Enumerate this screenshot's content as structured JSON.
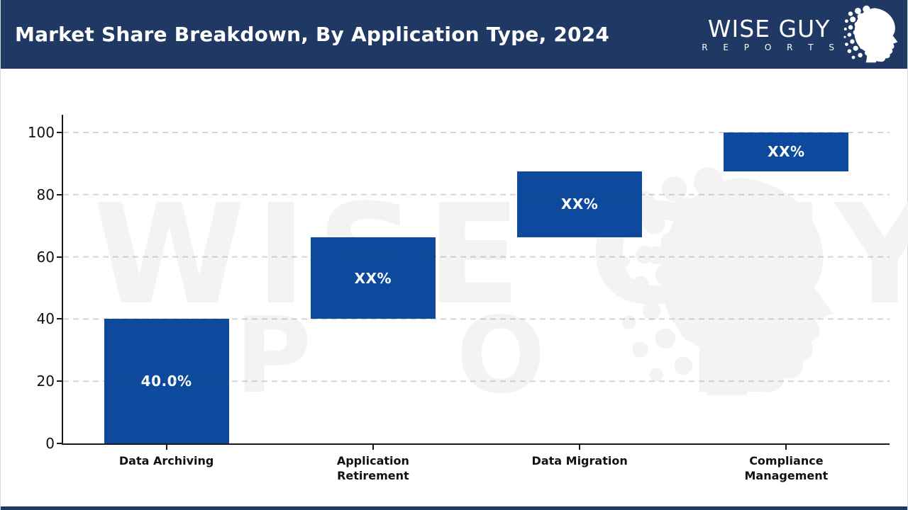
{
  "header": {
    "title": "Market Share Breakdown, By Application Type, 2024",
    "logo": {
      "wordmark": "WISE GUY",
      "subtext": "R E P O R T S"
    }
  },
  "watermark": {
    "line1": "WISE GUY",
    "line2": "P O R T S"
  },
  "colors": {
    "header_bg": "#1f3864",
    "bar": "#0d499c",
    "watermark": "#f3f3f3",
    "grid": "rgba(70,70,70,0.22)",
    "bottom_strip": "#1f3864"
  },
  "chart_data": {
    "type": "bar",
    "variant": "waterfall",
    "title": "Market Share Breakdown, By Application Type, 2024",
    "categories": [
      "Data Archiving",
      "Application Retirement",
      "Data Migration",
      "Compliance Management"
    ],
    "category_label_lines": [
      [
        "Data Archiving"
      ],
      [
        "Application",
        "Retirement"
      ],
      [
        "Data Migration"
      ],
      [
        "Compliance",
        "Management"
      ]
    ],
    "segments": [
      {
        "category": "Data Archiving",
        "start": 0,
        "end": 40,
        "label": "40.0%"
      },
      {
        "category": "Application Retirement",
        "start": 40,
        "end": 66.3,
        "label": "XX%"
      },
      {
        "category": "Data Migration",
        "start": 66.3,
        "end": 87.5,
        "label": "XX%"
      },
      {
        "category": "Compliance Management",
        "start": 87.5,
        "end": 100,
        "label": "XX%"
      }
    ],
    "bar_value_labels": [
      "40.0%",
      "XX%",
      "XX%",
      "XX%"
    ],
    "xlabel": "",
    "ylabel": "",
    "ylim": [
      0,
      100
    ],
    "yticks": [
      0,
      20,
      40,
      60,
      80,
      100
    ],
    "grid": "horizontal-dashed",
    "legend": "none"
  }
}
